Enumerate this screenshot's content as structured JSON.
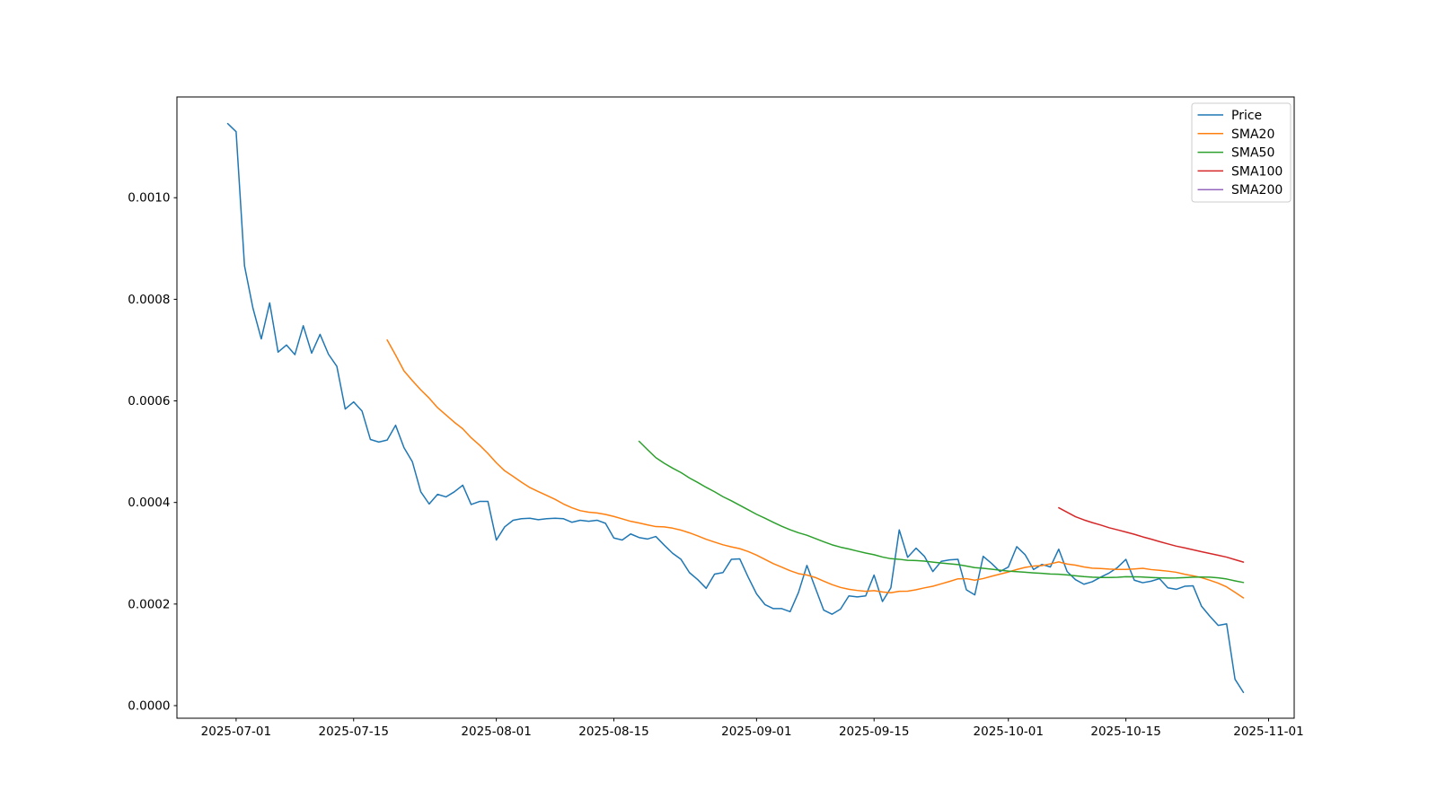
{
  "figure": {
    "background": "#ffffff"
  },
  "chart_data": {
    "type": "line",
    "title": "",
    "xlabel": "",
    "ylabel": "",
    "grid": false,
    "unit_scale": 1e-06,
    "x_axis": {
      "start_date": "2025-06-30",
      "frequency": "daily",
      "lim_days": [
        -6.05,
        127.05
      ],
      "tick_days": [
        1,
        15,
        32,
        46,
        63,
        77,
        93,
        107,
        124
      ],
      "tick_labels": [
        "2025-07-01",
        "2025-07-15",
        "2025-08-01",
        "2025-08-15",
        "2025-09-01",
        "2025-09-15",
        "2025-10-01",
        "2025-10-15",
        "2025-11-01"
      ]
    },
    "y_axis": {
      "lim": [
        -2.48e-05,
        0.0011984
      ],
      "tick_values": [
        0.0,
        0.0002,
        0.0004,
        0.0006,
        0.0008,
        0.001
      ],
      "tick_labels": [
        "0.0000",
        "0.0002",
        "0.0004",
        "0.0006",
        "0.0008",
        "0.0010"
      ]
    },
    "series": [
      {
        "name": "Price",
        "color": "#1f77b4",
        "kind": "raw",
        "values_micro": [
          1146,
          1130,
          866,
          783,
          722,
          793,
          696,
          710,
          691,
          748,
          694,
          731,
          692,
          668,
          584,
          598,
          580,
          524,
          519,
          523,
          552,
          508,
          480,
          421,
          397,
          416,
          411,
          421,
          434,
          396,
          402,
          402,
          326,
          352,
          365,
          368,
          369,
          366,
          368,
          369,
          368,
          361,
          365,
          363,
          365,
          359,
          330,
          326,
          338,
          331,
          328,
          333,
          316,
          300,
          288,
          262,
          248,
          231,
          259,
          262,
          288,
          289,
          253,
          220,
          199,
          191,
          191,
          185,
          223,
          276,
          232,
          188,
          180,
          190,
          216,
          214,
          216,
          257,
          205,
          232,
          346,
          292,
          310,
          294,
          264,
          284,
          287,
          288,
          228,
          218,
          294,
          280,
          264,
          273,
          313,
          297,
          268,
          278,
          273,
          308,
          264,
          248,
          239,
          244,
          253,
          261,
          272,
          288,
          247,
          242,
          245,
          250,
          232,
          229,
          235,
          236,
          196,
          176,
          158,
          161,
          52,
          26
        ]
      },
      {
        "name": "SMA20",
        "color": "#ff7f0e",
        "kind": "sma",
        "window": 20
      },
      {
        "name": "SMA50",
        "color": "#2ca02c",
        "kind": "sma",
        "window": 50
      },
      {
        "name": "SMA100",
        "color": "#d62728",
        "kind": "sma",
        "window": 100
      },
      {
        "name": "SMA200",
        "color": "#9467bd",
        "kind": "sma",
        "window": 200
      }
    ],
    "legend": {
      "position": "upper-right",
      "entries": [
        "Price",
        "SMA20",
        "SMA50",
        "SMA100",
        "SMA200"
      ]
    }
  }
}
